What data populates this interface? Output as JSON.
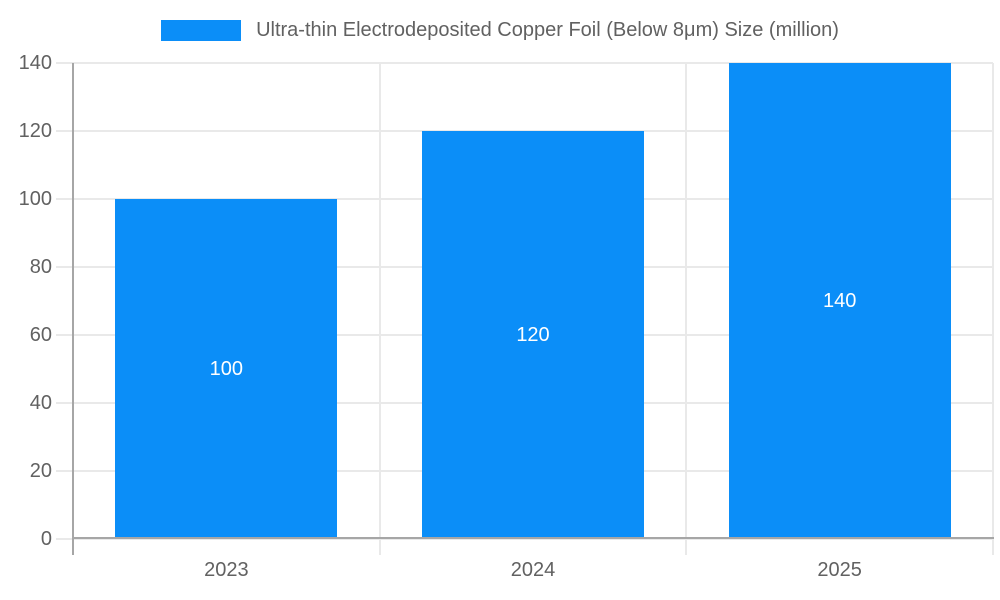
{
  "chart_data": {
    "type": "bar",
    "title": "Ultra-thin Electrodeposited Copper Foil (Below 8μm) Size (million)",
    "legend_entries": [
      "Ultra-thin Electrodeposited Copper Foil (Below 8μm) Size (million)"
    ],
    "legend_position": "top",
    "categories": [
      "2023",
      "2024",
      "2025"
    ],
    "series": [
      {
        "name": "Ultra-thin Electrodeposited Copper Foil (Below 8μm) Size (million)",
        "values": [
          100,
          120,
          140
        ]
      }
    ],
    "bar_value_labels": [
      "100",
      "120",
      "140"
    ],
    "xlabel": "",
    "ylabel": "",
    "ylim": [
      0,
      140
    ],
    "yticks": [
      0,
      20,
      40,
      60,
      80,
      100,
      120,
      140
    ],
    "grid": true
  },
  "colors": {
    "bar": "#0b8ef8",
    "text": "#616161",
    "grid": "#e9e9e9",
    "axis": "#a6a6a6",
    "bar_label": "#ffffff",
    "background": "#ffffff"
  }
}
